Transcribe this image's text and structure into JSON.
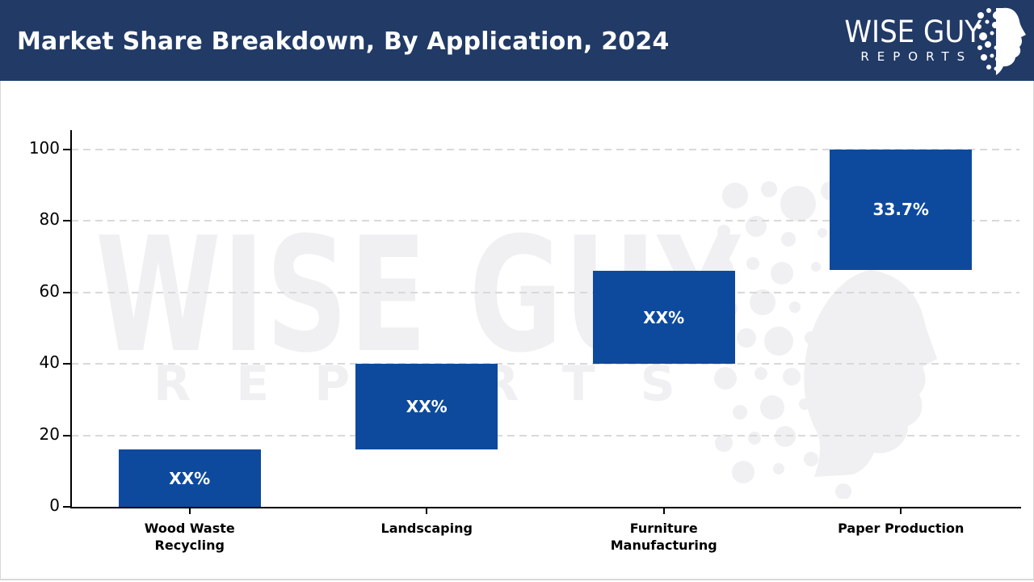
{
  "header": {
    "title": "Market Share Breakdown, By Application, 2024",
    "logo": {
      "line1": "WISE GUY",
      "line2": "REPORTS",
      "icon": "head-dots-icon"
    }
  },
  "watermark": {
    "line1": "WISE GUY",
    "line2": "REPORTS",
    "icon": "head-dots-watermark-icon"
  },
  "colors": {
    "header_bg": "#213a66",
    "bar": "#0d4a9e",
    "grid": "#d9d9d9",
    "axis": "#000000",
    "watermark": "#f0f0f3",
    "bar_label": "#ffffff",
    "title_text": "#ffffff"
  },
  "chart_data": {
    "type": "bar",
    "subtype": "floating-waterfall",
    "title": "Market Share Breakdown, By Application, 2024",
    "categories": [
      "Wood Waste\nRecycling",
      "Landscaping",
      "Furniture\nManufacturing",
      "Paper Production"
    ],
    "segments": [
      {
        "category": "Wood Waste Recycling",
        "start": 0,
        "end": 16,
        "value_label": "XX%"
      },
      {
        "category": "Landscaping",
        "start": 16,
        "end": 40,
        "value_label": "XX%"
      },
      {
        "category": "Furniture Manufacturing",
        "start": 40,
        "end": 66,
        "value_label": "XX%"
      },
      {
        "category": "Paper Production",
        "start": 66.3,
        "end": 100,
        "value_label": "33.7%"
      }
    ],
    "yticks": [
      0,
      20,
      40,
      60,
      80,
      100
    ],
    "ylim": [
      0,
      105.7
    ],
    "grid": "horizontal-dashed",
    "legend": null
  }
}
